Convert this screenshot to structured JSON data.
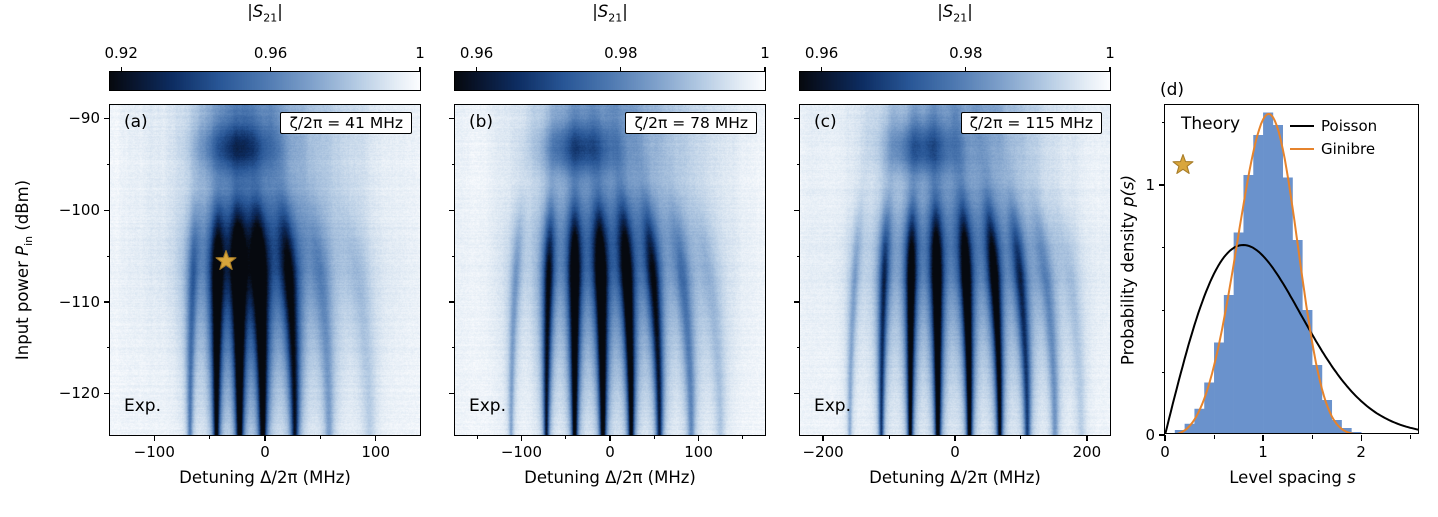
{
  "chart_data": [
    {
      "type": "heatmap",
      "id": "a",
      "tag": "(a)",
      "corner_label": "Exp.",
      "annotation": "ζ/2π = 41 MHz",
      "colorbar": {
        "title_pre": "|",
        "title_var": "S",
        "title_sub": "21",
        "title_post": "|",
        "vmin": 0.917,
        "vmax": 1.0,
        "ticks": [
          {
            "label": "0.92",
            "value": 0.92
          },
          {
            "label": "0.96",
            "value": 0.96
          },
          {
            "label": "1",
            "value": 1.0
          }
        ]
      },
      "xlabel": "Detuning Δ/2π (MHz)",
      "xlim": [
        -140,
        140
      ],
      "xticks": [
        {
          "label": "−100",
          "value": -100
        },
        {
          "label": "0",
          "value": 0
        },
        {
          "label": "100",
          "value": 100
        }
      ],
      "xminor_step": 50,
      "ylabel_pre": "Input power ",
      "ylabel_var": "P",
      "ylabel_sub": "in",
      "ylabel_post": " (dBm)",
      "ylim": [
        -124.5,
        -88.5
      ],
      "yticks": [
        {
          "label": "−90",
          "value": -90
        },
        {
          "label": "−100",
          "value": -100
        },
        {
          "label": "−110",
          "value": -110
        },
        {
          "label": "−120",
          "value": -120
        }
      ],
      "yminor_step": 5,
      "show_ytick_labels": true,
      "star": {
        "x": -35,
        "y": -105.5,
        "color": "#d9a63c",
        "edge": "#a87d28"
      },
      "heat": {
        "colormap": {
          "low": "#06090f",
          "mid": "#4e79b1",
          "high": "#fcfdff"
        },
        "haze": {
          "x": 10,
          "w": 85,
          "d": 0.17
        },
        "blobs": [
          {
            "x": -25,
            "t": 0.87,
            "sx": 32,
            "st": 0.08,
            "d": 0.4
          },
          {
            "x": -5,
            "t": 0.72,
            "sx": 60,
            "st": 0.2,
            "d": 0.12
          }
        ],
        "converge_x": -35,
        "bend": 0.35,
        "fade": [
          0.45,
          0.8
        ],
        "resonances": [
          {
            "x": -68,
            "depth": 0.45,
            "width": 2.2
          },
          {
            "x": -44,
            "depth": 1.05,
            "width": 2.6
          },
          {
            "x": -23,
            "depth": 1.2,
            "width": 2.8
          },
          {
            "x": -2,
            "depth": 1.15,
            "width": 3.0
          },
          {
            "x": 27,
            "depth": 0.9,
            "width": 3.2
          },
          {
            "x": 58,
            "depth": 0.3,
            "width": 4.0
          },
          {
            "x": 95,
            "depth": 0.15,
            "width": 5.0
          }
        ]
      }
    },
    {
      "type": "heatmap",
      "id": "b",
      "tag": "(b)",
      "corner_label": "Exp.",
      "annotation": "ζ/2π = 78 MHz",
      "colorbar": {
        "title_pre": "|",
        "title_var": "S",
        "title_sub": "21",
        "title_post": "|",
        "vmin": 0.957,
        "vmax": 1.0,
        "ticks": [
          {
            "label": "0.96",
            "value": 0.96
          },
          {
            "label": "0.98",
            "value": 0.98
          },
          {
            "label": "1",
            "value": 1.0
          }
        ]
      },
      "xlabel": "Detuning Δ/2π (MHz)",
      "xlim": [
        -175,
        175
      ],
      "xticks": [
        {
          "label": "−100",
          "value": -100
        },
        {
          "label": "0",
          "value": 0
        },
        {
          "label": "100",
          "value": 100
        }
      ],
      "xminor_step": 50,
      "ylim": [
        -124.5,
        -88.5
      ],
      "yticks": [
        {
          "label": "−90",
          "value": -90
        },
        {
          "label": "−100",
          "value": -100
        },
        {
          "label": "−110",
          "value": -110
        },
        {
          "label": "−120",
          "value": -120
        }
      ],
      "yminor_step": 5,
      "show_ytick_labels": false,
      "heat": {
        "colormap": {
          "low": "#06090f",
          "mid": "#4e79b1",
          "high": "#fcfdff"
        },
        "haze": {
          "x": 20,
          "w": 110,
          "d": 0.17
        },
        "blobs": [
          {
            "x": -35,
            "t": 0.87,
            "sx": 40,
            "st": 0.08,
            "d": 0.38
          },
          {
            "x": 0,
            "t": 0.72,
            "sx": 75,
            "st": 0.2,
            "d": 0.12
          }
        ],
        "converge_x": -40,
        "bend": 0.32,
        "fade": [
          0.45,
          0.8
        ],
        "resonances": [
          {
            "x": -112,
            "depth": 0.3,
            "width": 2.5
          },
          {
            "x": -72,
            "depth": 0.9,
            "width": 2.6
          },
          {
            "x": -40,
            "depth": 1.15,
            "width": 2.8
          },
          {
            "x": -8,
            "depth": 1.2,
            "width": 3.0
          },
          {
            "x": 24,
            "depth": 1.1,
            "width": 3.0
          },
          {
            "x": 56,
            "depth": 0.85,
            "width": 3.2
          },
          {
            "x": 92,
            "depth": 0.4,
            "width": 4.0
          },
          {
            "x": 125,
            "depth": 0.18,
            "width": 5.0
          }
        ]
      }
    },
    {
      "type": "heatmap",
      "id": "c",
      "tag": "(c)",
      "corner_label": "Exp.",
      "annotation": "ζ/2π = 115 MHz",
      "colorbar": {
        "title_pre": "|",
        "title_var": "S",
        "title_sub": "21",
        "title_post": "|",
        "vmin": 0.957,
        "vmax": 1.0,
        "ticks": [
          {
            "label": "0.96",
            "value": 0.96
          },
          {
            "label": "0.98",
            "value": 0.98
          },
          {
            "label": "1",
            "value": 1.0
          }
        ]
      },
      "xlabel": "Detuning Δ/2π (MHz)",
      "xlim": [
        -235,
        235
      ],
      "xticks": [
        {
          "label": "−200",
          "value": -200
        },
        {
          "label": "0",
          "value": 0
        },
        {
          "label": "200",
          "value": 200
        }
      ],
      "xminor_step": 100,
      "ylim": [
        -124.5,
        -88.5
      ],
      "yticks": [
        {
          "label": "−90",
          "value": -90
        },
        {
          "label": "−100",
          "value": -100
        },
        {
          "label": "−110",
          "value": -110
        },
        {
          "label": "−120",
          "value": -120
        }
      ],
      "yminor_step": 5,
      "show_ytick_labels": false,
      "heat": {
        "colormap": {
          "low": "#06090f",
          "mid": "#4e79b1",
          "high": "#fcfdff"
        },
        "haze": {
          "x": 25,
          "w": 150,
          "d": 0.17
        },
        "blobs": [
          {
            "x": -50,
            "t": 0.87,
            "sx": 52,
            "st": 0.08,
            "d": 0.36
          },
          {
            "x": 0,
            "t": 0.72,
            "sx": 95,
            "st": 0.2,
            "d": 0.12
          }
        ],
        "converge_x": -50,
        "bend": 0.3,
        "fade": [
          0.45,
          0.8
        ],
        "resonances": [
          {
            "x": -160,
            "depth": 0.28,
            "width": 3.0
          },
          {
            "x": -112,
            "depth": 0.75,
            "width": 3.2
          },
          {
            "x": -68,
            "depth": 1.1,
            "width": 3.4
          },
          {
            "x": -26,
            "depth": 1.2,
            "width": 3.6
          },
          {
            "x": 22,
            "depth": 1.15,
            "width": 3.6
          },
          {
            "x": 68,
            "depth": 1.0,
            "width": 3.8
          },
          {
            "x": 110,
            "depth": 0.7,
            "width": 4.2
          },
          {
            "x": 152,
            "depth": 0.35,
            "width": 5.0
          },
          {
            "x": 192,
            "depth": 0.15,
            "width": 6.0
          }
        ]
      }
    },
    {
      "type": "histogram",
      "id": "d",
      "tag": "(d)",
      "theory_label": "Theory",
      "star": {
        "x": 0.18,
        "y": 1.08,
        "color": "#d9a63c",
        "edge": "#a87d28"
      },
      "xlabel_pre": "Level spacing ",
      "xlabel_var": "s",
      "ylabel_pre": "Probability density ",
      "ylabel_var": "p(s)",
      "xlim": [
        0,
        2.6
      ],
      "ylim": [
        0,
        1.32
      ],
      "xticks": [
        {
          "label": "0",
          "value": 0
        },
        {
          "label": "1",
          "value": 1
        },
        {
          "label": "2",
          "value": 2
        }
      ],
      "yticks": [
        {
          "label": "0",
          "value": 0
        },
        {
          "label": "1",
          "value": 1
        }
      ],
      "xminor_step": 0.5,
      "yminor_step": 0.25,
      "show_ytick_labels": true,
      "histogram": {
        "color": "#6a92cc",
        "bin_start": 0,
        "bin_width": 0.1,
        "heights": [
          0.005,
          0.02,
          0.045,
          0.105,
          0.21,
          0.37,
          0.56,
          0.81,
          1.04,
          1.2,
          1.29,
          1.24,
          1.03,
          0.78,
          0.5,
          0.28,
          0.14,
          0.06,
          0.028,
          0.012,
          0.006,
          0.003
        ]
      },
      "curves": [
        {
          "name": "Poisson",
          "color": "#000000",
          "form": "a·s·exp(−b·s²)",
          "a": 1.5708,
          "b": 0.7854,
          "power": 1,
          "exp_power": 2
        },
        {
          "name": "Ginibre",
          "color": "#e6832c",
          "form": "a·s³·exp(−b·s⁴)",
          "a": 2.3,
          "b": 0.6,
          "power": 3,
          "exp_power": 4
        }
      ],
      "legend": [
        {
          "label": "Poisson",
          "color": "#000000"
        },
        {
          "label": "Ginibre",
          "color": "#e6832c"
        }
      ]
    }
  ]
}
